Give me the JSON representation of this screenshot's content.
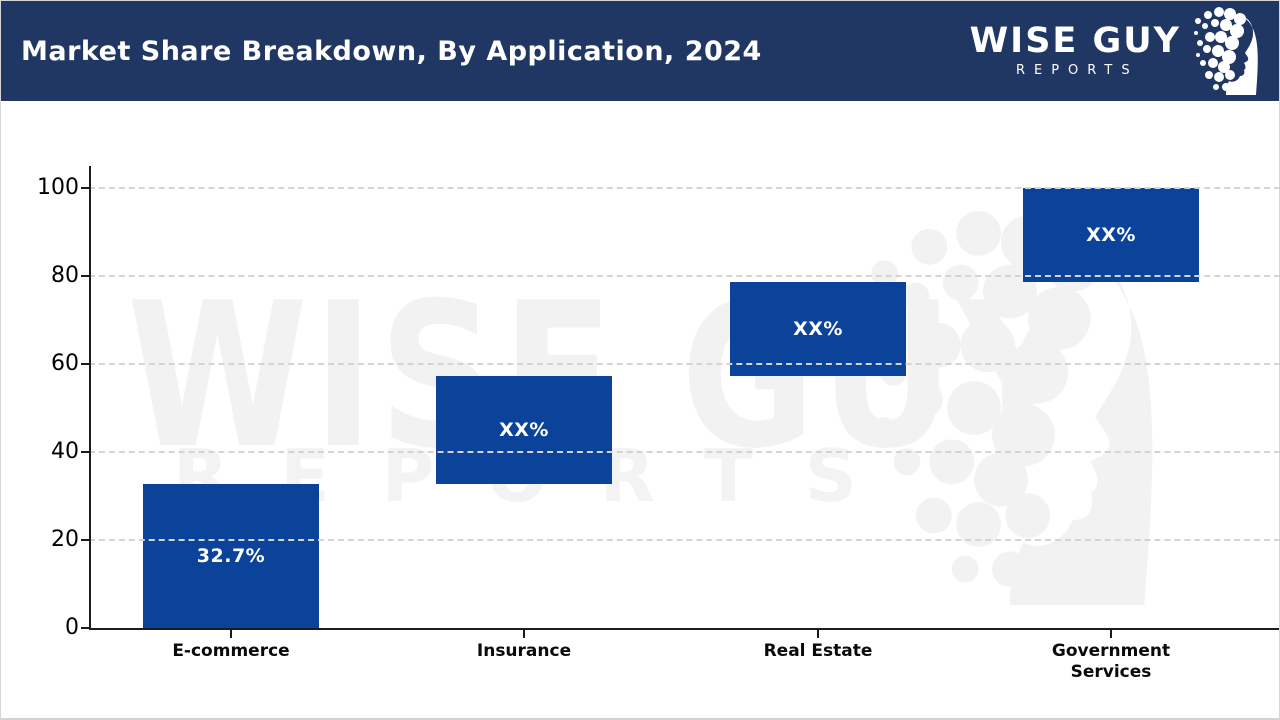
{
  "header": {
    "title": "Market Share Breakdown, By Application, 2024",
    "brand": {
      "name": "WISE GUY",
      "tagline": "REPORTS"
    }
  },
  "watermark": {
    "line1": "WISE GUY",
    "line2": "REPORTS"
  },
  "chart_data": {
    "type": "bar",
    "subtype": "waterfall-floating-bars",
    "title": "Market Share Breakdown, By Application, 2024",
    "categories": [
      "E-commerce",
      "Insurance",
      "Real Estate",
      "Government Services"
    ],
    "category_display": [
      [
        "E-commerce"
      ],
      [
        "Insurance"
      ],
      [
        "Real Estate"
      ],
      [
        "Government",
        "Services"
      ]
    ],
    "segments": [
      {
        "category": "E-commerce",
        "start": 0,
        "end": 32.7,
        "value_label": "32.7%"
      },
      {
        "category": "Insurance",
        "start": 32.7,
        "end": 57.3,
        "value_label": "XX%"
      },
      {
        "category": "Real Estate",
        "start": 57.3,
        "end": 78.6,
        "value_label": "XX%"
      },
      {
        "category": "Government Services",
        "start": 78.6,
        "end": 100,
        "value_label": "XX%"
      }
    ],
    "xlabel": "",
    "ylabel": "",
    "ylim": [
      0,
      100
    ],
    "yticks": [
      0,
      20,
      40,
      60,
      80,
      100
    ],
    "grid": "horizontal-dashed",
    "legend": "none"
  },
  "colors": {
    "header_bg": "#203764",
    "bar": "#0b439b",
    "bar_label": "#ffffff",
    "grid": "#d4d4d4",
    "axis": "#1c1c1c",
    "watermark": "#f2f2f2"
  }
}
